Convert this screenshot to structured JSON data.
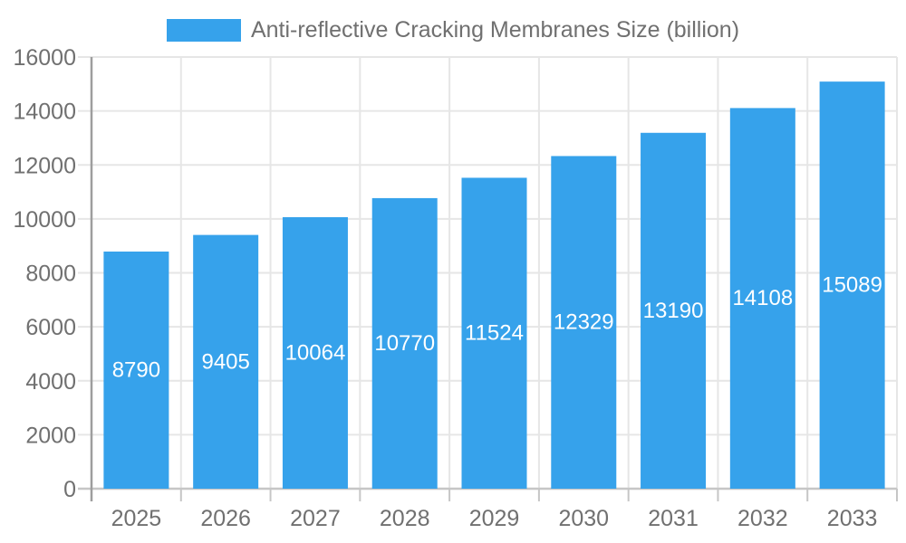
{
  "legend": {
    "label": "Anti-reflective Cracking Membranes Size (billion)",
    "swatch_color": "#36A2EB"
  },
  "chart_data": {
    "type": "bar",
    "title": "Anti-reflective Cracking Membranes Size (billion)",
    "categories": [
      "2025",
      "2026",
      "2027",
      "2028",
      "2029",
      "2030",
      "2031",
      "2032",
      "2033"
    ],
    "values": [
      8790,
      9405,
      10064,
      10770,
      11524,
      12329,
      13190,
      14108,
      15089
    ],
    "series": [
      {
        "name": "Anti-reflective Cracking Membranes Size (billion)",
        "values": [
          8790,
          9405,
          10064,
          10770,
          11524,
          12329,
          13190,
          14108,
          15089
        ]
      }
    ],
    "xlabel": "",
    "ylabel": "",
    "ylim": [
      0,
      16000
    ],
    "yticks": [
      0,
      2000,
      4000,
      6000,
      8000,
      10000,
      12000,
      14000,
      16000
    ],
    "grid": true,
    "value_labels_inside_bars": true,
    "legend_position": "top-center",
    "colors": {
      "bar": "#36A2EB",
      "bar_label": "#FFFFFF",
      "grid": "#E6E6E6",
      "y_axis_line": "#9E9E9E",
      "x_axis_line": "#C6C6C6",
      "tick": "#C6C6C6",
      "axis_text": "#707070"
    }
  }
}
